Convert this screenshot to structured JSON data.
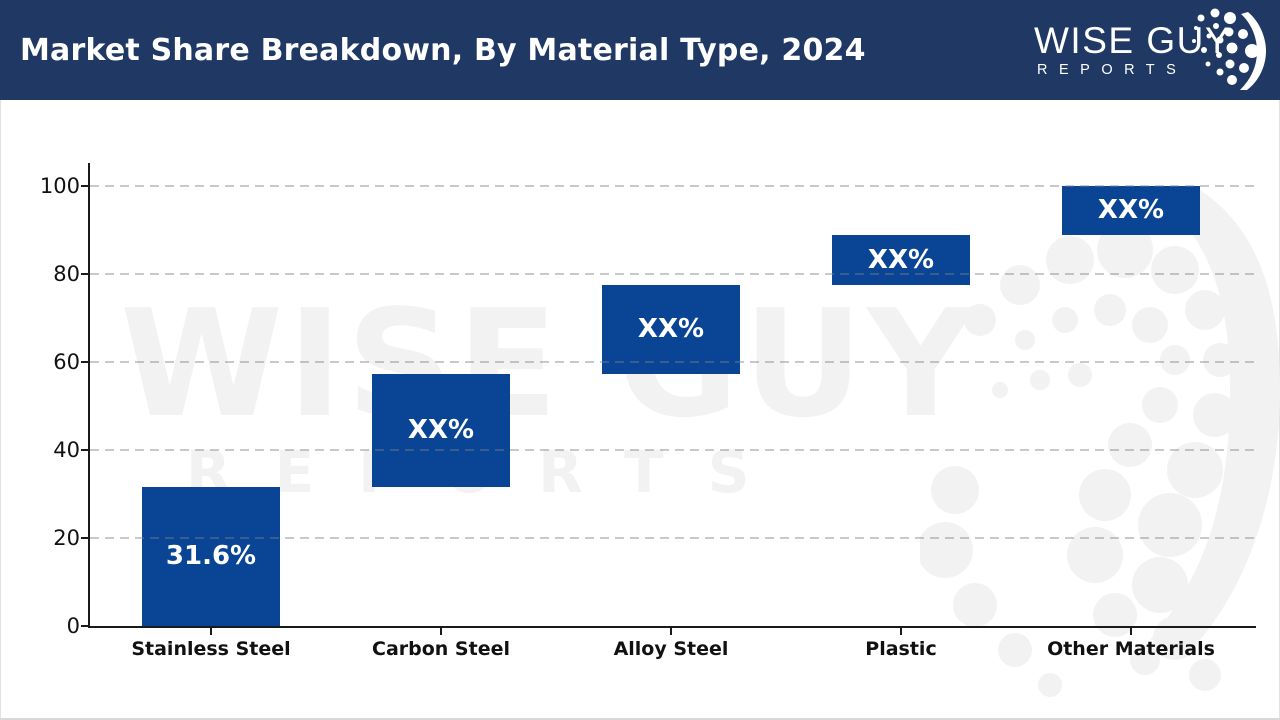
{
  "header": {
    "title": "Market Share Breakdown, By Material Type, 2024",
    "logo": {
      "line1": "WISE GUY",
      "line2": "REPORTS"
    }
  },
  "watermark": {
    "line1": "WISE GUY",
    "line2": "REPORTS"
  },
  "colors": {
    "header_bg": "#1f3864",
    "bar": "#0a4595",
    "bar_label": "#ffffff",
    "axis": "#1a1a1a",
    "gridline": "#c9ccd3",
    "watermark": "#f2f2f2"
  },
  "chart_data": {
    "type": "bar",
    "subtype": "waterfall",
    "title": "Market Share Breakdown, By Material Type, 2024",
    "categories": [
      "Stainless Steel",
      "Carbon Steel",
      "Alloy Steel",
      "Plastic",
      "Other Materials"
    ],
    "segments": [
      {
        "category": "Stainless Steel",
        "start": 0,
        "end": 31.6,
        "label": "31.6%"
      },
      {
        "category": "Carbon Steel",
        "start": 31.6,
        "end": 57.3,
        "label": "XX%"
      },
      {
        "category": "Alloy Steel",
        "start": 57.3,
        "end": 77.5,
        "label": "XX%"
      },
      {
        "category": "Plastic",
        "start": 77.5,
        "end": 88.9,
        "label": "XX%"
      },
      {
        "category": "Other Materials",
        "start": 88.9,
        "end": 100,
        "label": "XX%"
      }
    ],
    "xlabel": "",
    "ylabel": "",
    "yticks": [
      0,
      20,
      40,
      60,
      80,
      100
    ],
    "ylim": [
      0,
      105
    ],
    "grid": {
      "axis": "y",
      "style": "dashed",
      "drawn_over_bars": true
    },
    "legend": "none"
  }
}
